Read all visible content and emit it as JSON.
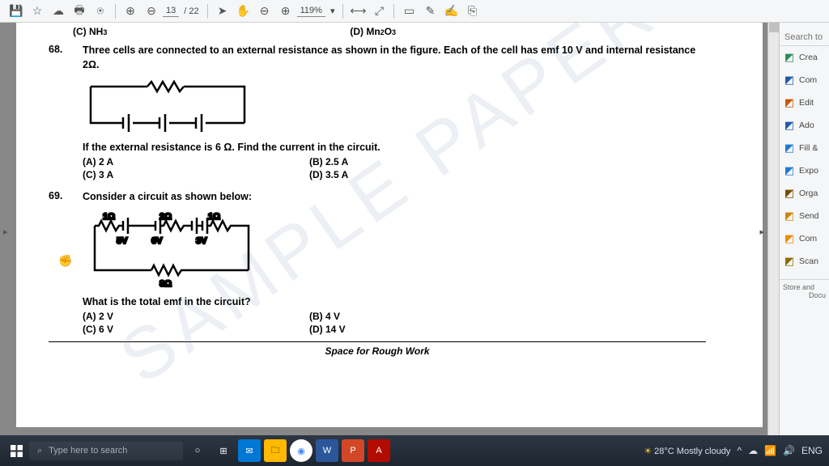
{
  "toolbar": {
    "page_current": "13",
    "page_total": "/ 22",
    "zoom": "119%",
    "zoom_suffix": "▾"
  },
  "page": {
    "watermark": "SAMPLE PAPER",
    "prev_options": {
      "c": "(C) NH",
      "c_sub": "3",
      "d": "(D) Mn",
      "d_sub1": "2",
      "d_mid": "O",
      "d_sub2": "3"
    },
    "q68": {
      "num": "68.",
      "text": "Three cells are connected to an external resistance as shown in the figure. Each of the cell has emf 10 V and internal resistance 2Ω.",
      "subtext": "If the external resistance is 6 Ω. Find the current in the circuit.",
      "opts": {
        "a": "(A) 2 A",
        "b": "(B) 2.5 A",
        "c": "(C) 3 A",
        "d": "(D) 3.5 A"
      }
    },
    "q69": {
      "num": "69.",
      "text": "Consider a circuit as shown below:",
      "labels": {
        "r1": "1Ω",
        "r2": "2Ω",
        "r3": "1Ω",
        "v1": "5V",
        "v2": "6V",
        "v3": "3V",
        "rext": "8Ω"
      },
      "subtext": "What is the total emf in the circuit?",
      "opts": {
        "a": "(A) 2 V",
        "b": "(B) 4 V",
        "c": "(C) 6 V",
        "d": "(D) 14 V"
      }
    },
    "rough": "Space for Rough Work"
  },
  "sidebar": {
    "search": "Search to",
    "items": [
      {
        "icon_color": "#2e8b57",
        "label": "Crea"
      },
      {
        "icon_color": "#1e5aa8",
        "label": "Com"
      },
      {
        "icon_color": "#cc5500",
        "label": "Edit"
      },
      {
        "icon_color": "#1e5aa8",
        "label": "Ado"
      },
      {
        "icon_color": "#2277cc",
        "label": "Fill &"
      },
      {
        "icon_color": "#2277cc",
        "label": "Expo"
      },
      {
        "icon_color": "#7a4a00",
        "label": "Orga"
      },
      {
        "icon_color": "#cc8800",
        "label": "Send"
      },
      {
        "icon_color": "#ee8800",
        "label": "Com"
      },
      {
        "icon_color": "#8a6a00",
        "label": "Scan"
      }
    ],
    "store": "Store and",
    "store2": "Docu"
  },
  "taskbar": {
    "search_placeholder": "Type here to search",
    "weather": "28°C Mostly cloudy",
    "lang": "ENG"
  }
}
